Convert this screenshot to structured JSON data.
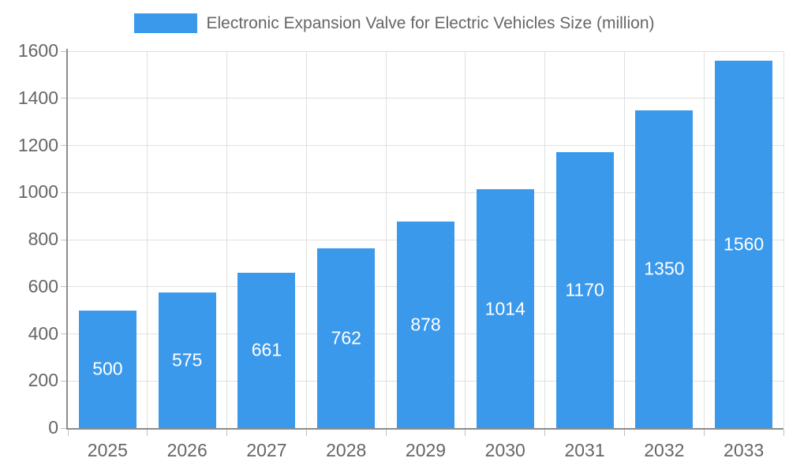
{
  "chart_data": {
    "type": "bar",
    "title": "",
    "legend_label": "Electronic Expansion Valve for Electric Vehicles Size (million)",
    "categories": [
      "2025",
      "2026",
      "2027",
      "2028",
      "2029",
      "2030",
      "2031",
      "2032",
      "2033"
    ],
    "series": [
      {
        "name": "Electronic Expansion Valve for Electric Vehicles Size (million)",
        "values": [
          500,
          575,
          661,
          762,
          878,
          1014,
          1170,
          1350,
          1560
        ]
      }
    ],
    "yticks": [
      0,
      200,
      400,
      600,
      800,
      1000,
      1200,
      1400,
      1600
    ],
    "ylim": [
      0,
      1600
    ],
    "xlabel": "",
    "ylabel": "",
    "grid": true,
    "legend_position": "top-center",
    "value_labels": "inside-center",
    "colors": {
      "bar": "#3B99EC",
      "value_label": "#FFFFFF",
      "tick_label": "#666666",
      "grid": "#E0E0E0",
      "axis": "#8C8C8C",
      "tick_mark": "#C0C0C0",
      "background": "#FFFFFF"
    }
  }
}
